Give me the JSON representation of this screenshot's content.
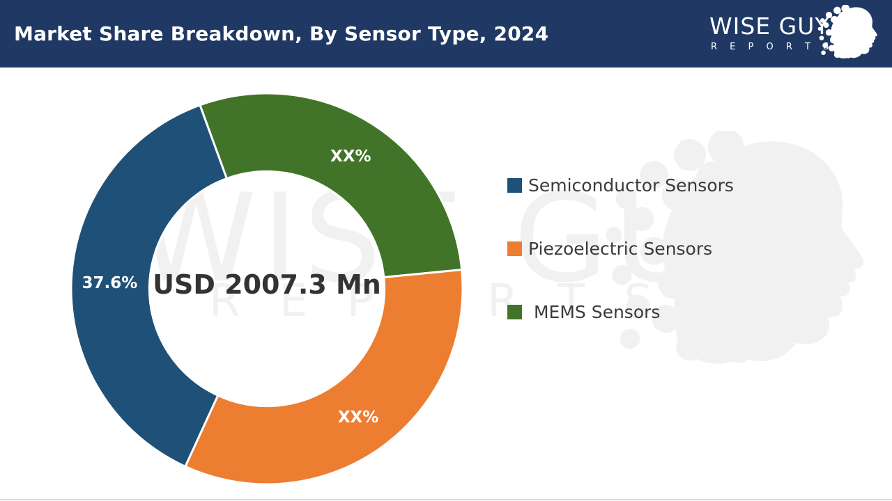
{
  "header": {
    "title": "Market Share Breakdown, By Sensor Type, 2024",
    "bg_color": "#1F3864",
    "brand": {
      "line1": "WISE GUY",
      "line2": "R E P O R T S"
    }
  },
  "watermark": {
    "line1": "WISE GUY",
    "line2": "R E P O R T S"
  },
  "chart_data": {
    "type": "donut",
    "title": "Market Share Breakdown, By Sensor Type, 2024",
    "center_label": "USD 2007.3 Mn",
    "start_angle_deg": -20,
    "inner_radius_ratio": 0.6,
    "legend_position": "right",
    "slices": [
      {
        "name": "MEMS Sensors",
        "display_label": "XX%",
        "value": 29.0,
        "color": "#417428",
        "label_color": "#ffffff"
      },
      {
        "name": "Piezoelectric Sensors",
        "display_label": "XX%",
        "value": 33.4,
        "color": "#ED7D31",
        "label_color": "#ffffff"
      },
      {
        "name": "Semiconductor Sensors",
        "display_label": "37.6%",
        "value": 37.6,
        "color": "#1F5178",
        "label_color": "#ffffff"
      }
    ],
    "legend": [
      {
        "label": "Semiconductor Sensors",
        "color": "#1F5178"
      },
      {
        "label": "Piezoelectric Sensors",
        "color": "#ED7D31"
      },
      {
        "label": " MEMS Sensors",
        "color": "#417428"
      }
    ]
  },
  "colors": {
    "header_bg": "#1F3864",
    "center_text": "#333333",
    "legend_text": "#3A3A3A",
    "watermark": "#F1F1F2",
    "bottom_line": "#D9D9D9",
    "separator": "#FFFFFF"
  }
}
